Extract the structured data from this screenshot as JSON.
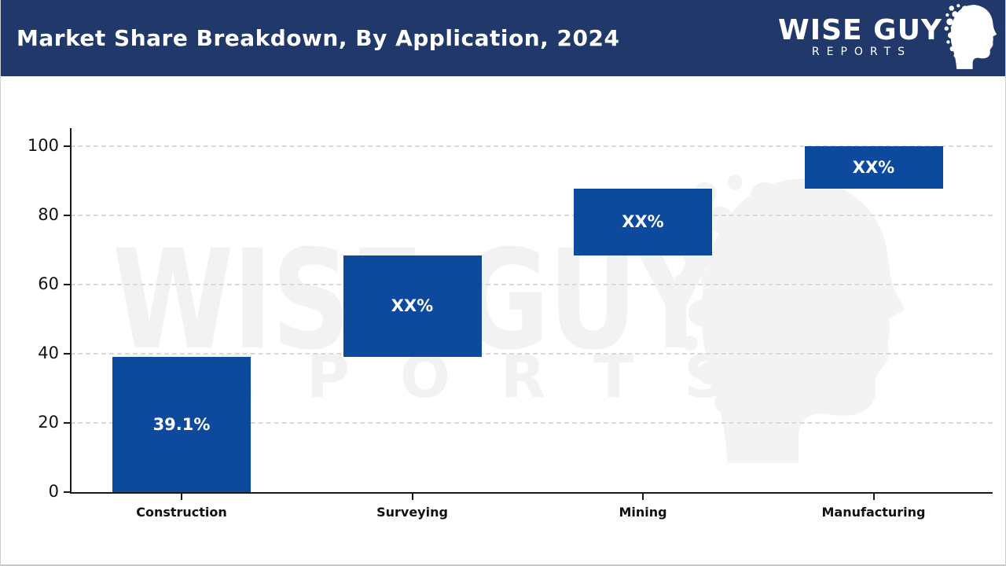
{
  "header": {
    "title": "Market Share Breakdown, By Application, 2024",
    "logo": {
      "line1": "WISE GUY",
      "line2": "REPORTS"
    }
  },
  "watermark": {
    "line1": "WISE GUY",
    "line2": "REPORTS"
  },
  "colors": {
    "header_background": "#21386A",
    "bar_blue": "#0D4A9D",
    "watermark_gray": "#F2F2F2",
    "grid_gray": "#D9D9D9",
    "axis_black": "#1A1A1A",
    "title_white": "#FFFFFF"
  },
  "chart_data": {
    "type": "bar",
    "subtype": "floating-waterfall",
    "title": "Market Share Breakdown, By Application, 2024",
    "categories": [
      "Construction",
      "Surveying",
      "Mining",
      "Manufacturing"
    ],
    "bars": [
      {
        "category": "Construction",
        "start": 0,
        "end": 39.1,
        "label": "39.1%"
      },
      {
        "category": "Surveying",
        "start": 39.1,
        "end": 68.4,
        "label": "XX%"
      },
      {
        "category": "Mining",
        "start": 68.4,
        "end": 87.8,
        "label": "XX%"
      },
      {
        "category": "Manufacturing",
        "start": 87.8,
        "end": 100,
        "label": "XX%"
      }
    ],
    "yticks": [
      0,
      20,
      40,
      60,
      80,
      100
    ],
    "ylim": [
      0,
      105
    ],
    "xlabel": "",
    "ylabel": "",
    "grid": "horizontal-dashed",
    "legend": "none",
    "bar_color": "#0D4A9D"
  }
}
